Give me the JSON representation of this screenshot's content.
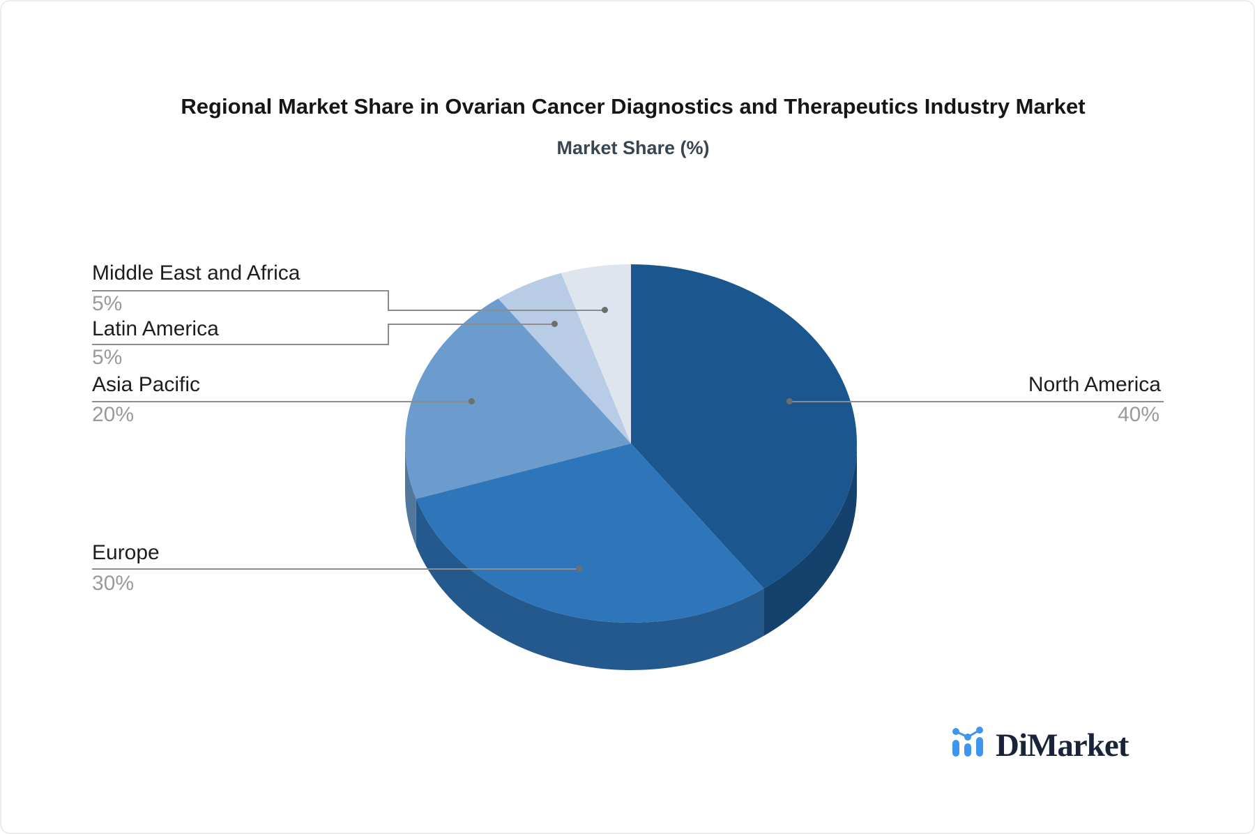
{
  "header": {
    "title": "Regional Market Share in Ovarian Cancer Diagnostics and Therapeutics Industry Market",
    "subtitle": "Market Share (%)"
  },
  "chart_data": {
    "type": "pie",
    "title": "Regional Market Share in Ovarian Cancer Diagnostics and Therapeutics Industry Market",
    "subtitle": "Market Share (%)",
    "style": "3d-pie",
    "start_angle_deg": 0,
    "direction": "clockwise",
    "unit": "%",
    "legend_position": "none",
    "label_style": "callout-leader-lines",
    "slices": [
      {
        "name": "North America",
        "value": 40,
        "pct": "40%",
        "color": "#1B578E"
      },
      {
        "name": "Europe",
        "value": 30,
        "pct": "30%",
        "color": "#2F75BA"
      },
      {
        "name": "Asia Pacific",
        "value": 20,
        "pct": "20%",
        "color": "#6B9CCD"
      },
      {
        "name": "Latin America",
        "value": 5,
        "pct": "5%",
        "color": "#B9CCE5"
      },
      {
        "name": "Middle East and Africa",
        "value": 5,
        "pct": "5%",
        "color": "#DFE5EE"
      }
    ]
  },
  "branding": {
    "logo_text": "DiMarket",
    "logo_icon": "bar-line-chart-icon",
    "logo_icon_color": "#3E96EE",
    "logo_text_color": "#1A2438"
  },
  "colors": {
    "background": "#FFFFFF",
    "label_text": "#1D1D1D",
    "value_text": "#9A9A9A",
    "leader_line": "#8C8C8C",
    "leader_dot": "#6E6E6E"
  }
}
